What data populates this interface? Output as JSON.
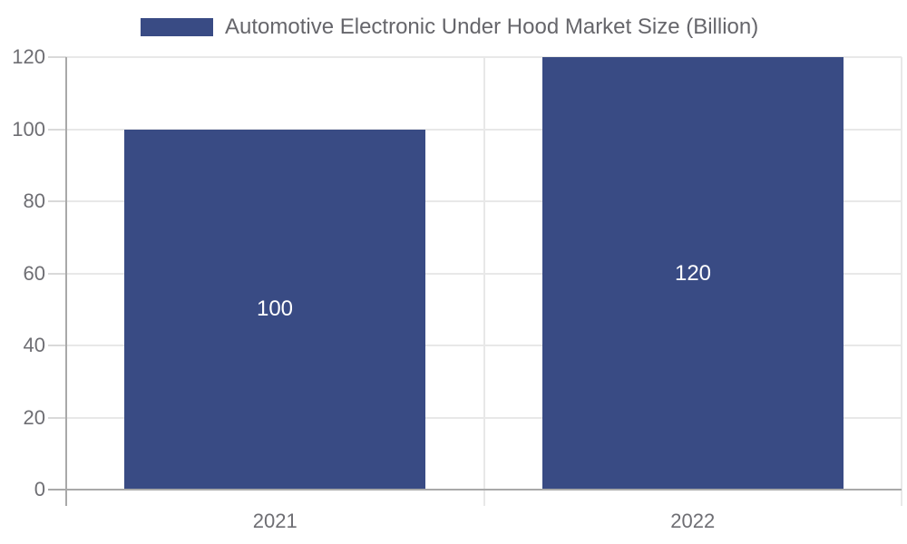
{
  "chart_data": {
    "type": "bar",
    "title": "Automotive Electronic Under Hood Market Size (Billion)",
    "series_name": "Automotive Electronic Under Hood Market Size (Billion)",
    "categories": [
      "2021",
      "2022"
    ],
    "values": [
      100,
      120
    ],
    "data_labels": [
      "100",
      "120"
    ],
    "yticks": [
      0,
      20,
      40,
      60,
      80,
      100,
      120
    ],
    "ytick_labels": [
      "0",
      "20",
      "40",
      "60",
      "80",
      "100",
      "120"
    ],
    "ylim": [
      0,
      120
    ],
    "xlabel": "",
    "ylabel": "",
    "grid": true,
    "legend_position": "top"
  },
  "colors": {
    "bar": "#394B84",
    "value_text": "#ffffff",
    "legend_text": "#66666b",
    "axis_text": "#6e6e73",
    "gridline": "#e8e8e8",
    "tick": "#d9d9d9",
    "axis_line": "#a9a9a9",
    "background": "#ffffff"
  }
}
